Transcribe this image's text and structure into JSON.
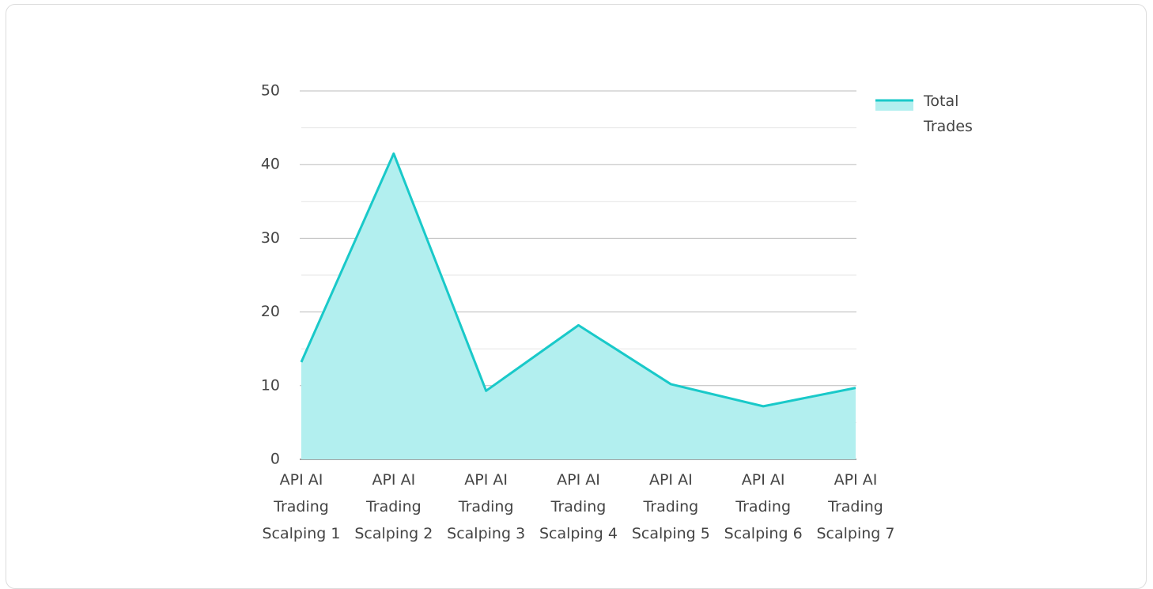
{
  "chart_data": {
    "type": "area",
    "categories": [
      "API AI Trading Scalping 1",
      "API AI Trading Scalping 2",
      "API AI Trading Scalping 3",
      "API AI Trading Scalping 4",
      "API AI Trading Scalping 5",
      "API AI Trading Scalping 6",
      "API AI Trading Scalping 7"
    ],
    "series": [
      {
        "name": "Total Trades",
        "color": "#19c9c9",
        "fill": "#b2efef",
        "values": [
          13.2,
          41.5,
          9.3,
          18.2,
          10.2,
          7.2,
          9.7
        ]
      }
    ],
    "ylim": [
      0,
      50
    ],
    "yticks": [
      0,
      10,
      20,
      30,
      40,
      50
    ],
    "minor_yticks": [
      5,
      15,
      25,
      35,
      45
    ],
    "grid": true,
    "legend": "right"
  }
}
